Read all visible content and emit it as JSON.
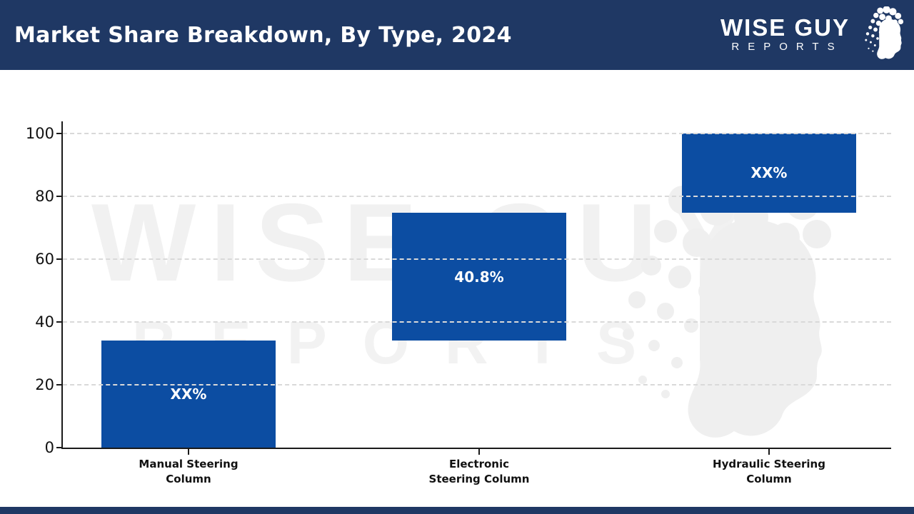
{
  "header": {
    "title": "Market Share Breakdown, By Type, 2024",
    "logo": {
      "wordmark": "WISE GUY",
      "subtitle": "REPORTS"
    }
  },
  "watermark": {
    "wordmark": "WISE GUY",
    "subtitle": "REPORTS"
  },
  "chart_data": {
    "type": "bar",
    "subtype": "floating-segment-breakdown",
    "title": "Market Share Breakdown, By Type, 2024",
    "xlabel": "",
    "ylabel": "",
    "categories": [
      [
        "Manual Steering",
        "Column"
      ],
      [
        "Electronic",
        "Steering Column"
      ],
      [
        "Hydraulic Steering",
        "Column"
      ]
    ],
    "segments": [
      {
        "category": "Manual Steering Column",
        "start": 0,
        "end": 34,
        "value_label": "XX%"
      },
      {
        "category": "Electronic Steering Column",
        "start": 34,
        "end": 74.8,
        "value_label": "40.8%"
      },
      {
        "category": "Hydraulic Steering Column",
        "start": 74.8,
        "end": 100,
        "value_label": "XX%"
      }
    ],
    "yticks": [
      0,
      20,
      40,
      60,
      80,
      100
    ],
    "ylim": [
      0,
      104
    ],
    "grid": true,
    "gridline_style": "dashed",
    "legend": false,
    "colors": {
      "bar": "#0C4DA2",
      "value_label": "#FFFFFF",
      "gridline": "#D9D9D9",
      "axis": "#1A1A1A",
      "tick_label": "#111111"
    }
  },
  "colors": {
    "header_bg": "#1F3864",
    "footer_bg": "#1F3864",
    "page_bg": "#FFFFFF",
    "watermark": "#F1F1F1"
  }
}
